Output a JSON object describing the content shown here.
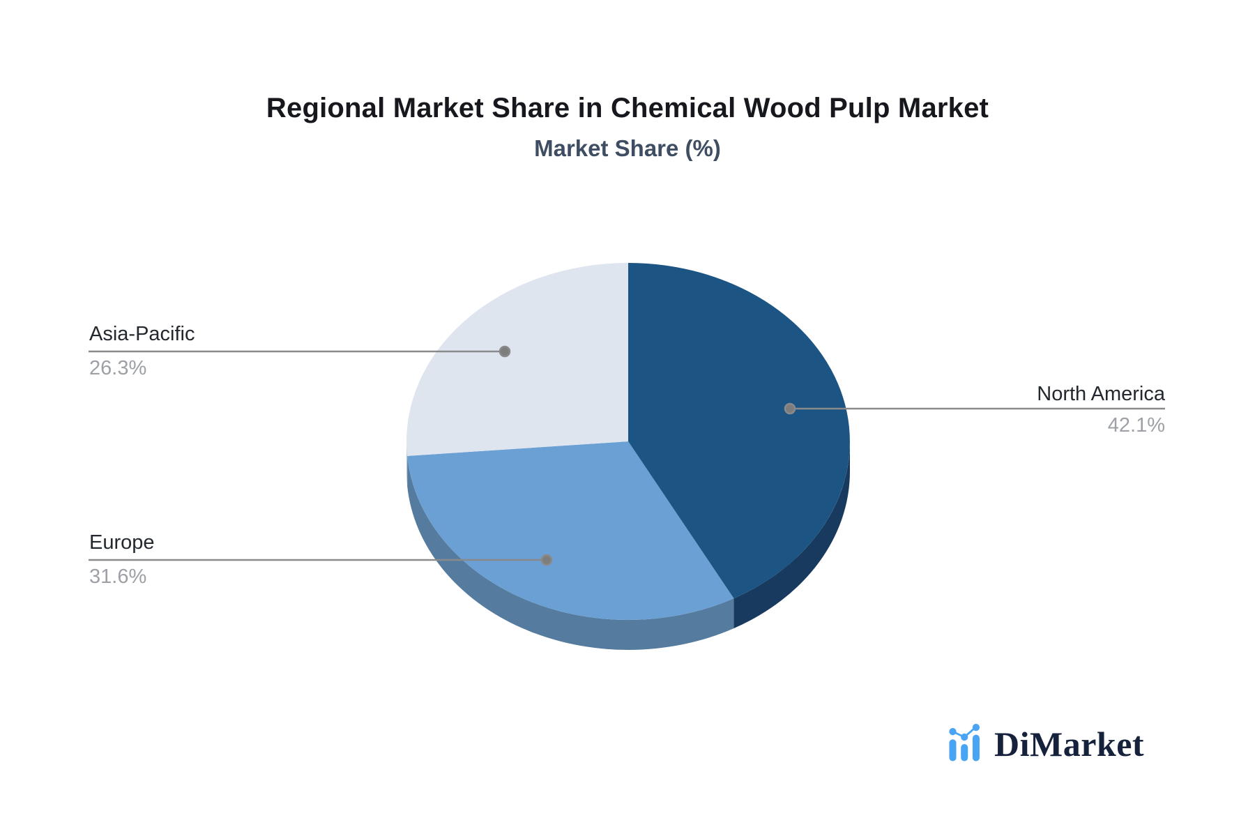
{
  "page": {
    "title": "Regional Market Share in Chemical Wood Pulp Market",
    "subtitle": "Market Share (%)"
  },
  "chart_data": {
    "type": "pie",
    "style": "3d",
    "title": "Regional Market Share in Chemical Wood Pulp Market",
    "subtitle": "Market Share (%)",
    "unit": "%",
    "start_angle_deg": 0,
    "direction": "clockwise",
    "legend_position": "callout-labels",
    "slices": [
      {
        "label": "North America",
        "value": 42.1,
        "color": "#1C5483",
        "side_color": "#173A5E"
      },
      {
        "label": "Europe",
        "value": 31.6,
        "color": "#6BA0D4",
        "side_color": "#557C9E"
      },
      {
        "label": "Asia-Pacific",
        "value": 26.3,
        "color": "#DEE5EF",
        "side_color": "#B7C4D8"
      }
    ]
  },
  "callouts": {
    "asia_pacific": {
      "name": "Asia-Pacific",
      "pct": "26.3%"
    },
    "europe": {
      "name": "Europe",
      "pct": "31.6%"
    },
    "north_america": {
      "name": "North America",
      "pct": "42.1%"
    }
  },
  "branding": {
    "logo_text": "DiMarket",
    "logo_text_color": "#16223c",
    "logo_icon": "bar-chart-logo",
    "logo_icon_color": "#4aa4f4"
  },
  "colors": {
    "leader_line": "#8a8a8a",
    "leader_dot": "#7d7d7d",
    "percent_text": "#9da1a6",
    "label_text": "#23272e",
    "subtitle_text": "#3f4d63"
  }
}
